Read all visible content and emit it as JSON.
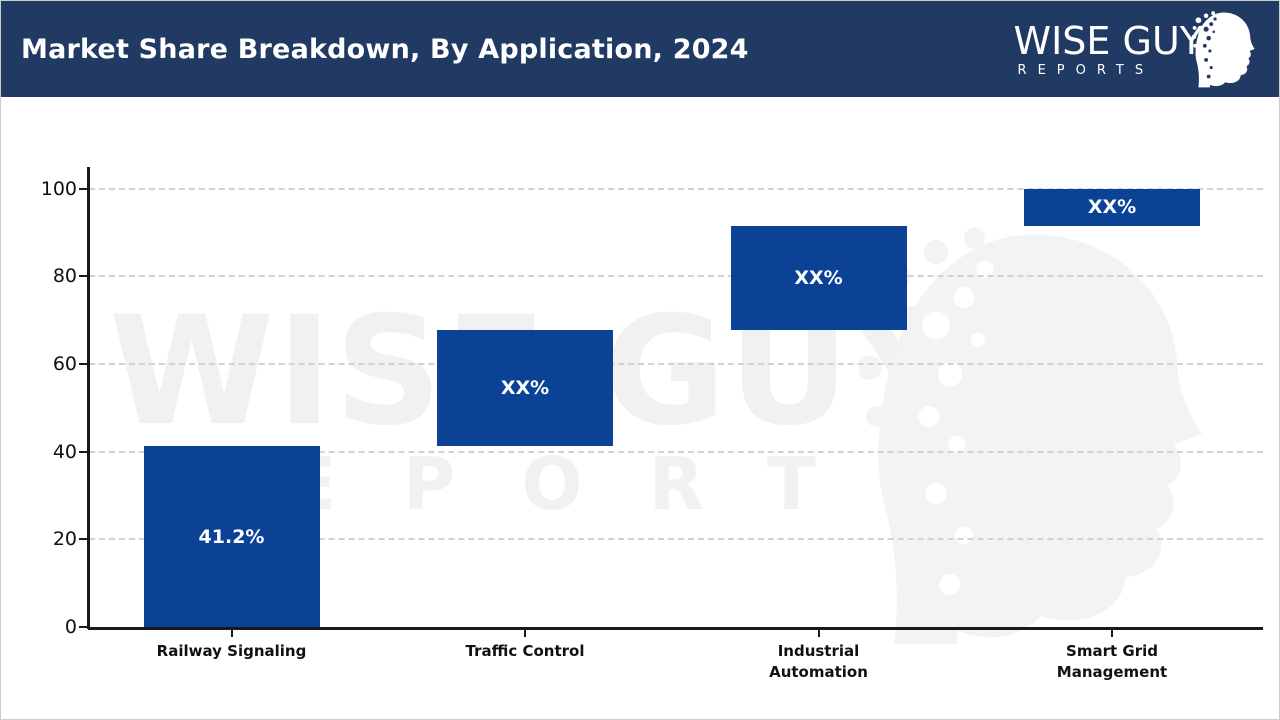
{
  "header": {
    "title": "Market Share Breakdown, By Application, 2024",
    "logo": {
      "line1": "WISE GUY",
      "line2": "REPORTS"
    },
    "bg_color": "#203a64"
  },
  "watermark": {
    "big": "WISE GUY.",
    "small": "REPORTS."
  },
  "chart_data": {
    "type": "bar",
    "subtype": "waterfall-breakdown",
    "title": "Market Share Breakdown, By Application, 2024",
    "categories": [
      "Railway Signaling",
      "Traffic Control",
      "Industrial\nAutomation",
      "Smart Grid\nManagement"
    ],
    "segments": [
      {
        "category": "Railway Signaling",
        "start": 0,
        "end": 41.2,
        "value": 41.2,
        "data_label": "41.2%"
      },
      {
        "category": "Traffic Control",
        "start": 41.2,
        "end": 67.7,
        "value": 26.5,
        "data_label": "XX%"
      },
      {
        "category": "Industrial Automation",
        "start": 67.7,
        "end": 91.4,
        "value": 23.7,
        "data_label": "XX%"
      },
      {
        "category": "Smart Grid Management",
        "start": 91.4,
        "end": 100,
        "value": 8.6,
        "data_label": "XX%"
      }
    ],
    "xlabel": "",
    "ylabel": "",
    "ylim": [
      0,
      100
    ],
    "yticks": [
      0,
      20,
      40,
      60,
      80,
      100
    ],
    "grid": "horizontal-dashed",
    "legend": "none",
    "bar_color": "#0b4296",
    "data_label_color": "#ffffff"
  }
}
